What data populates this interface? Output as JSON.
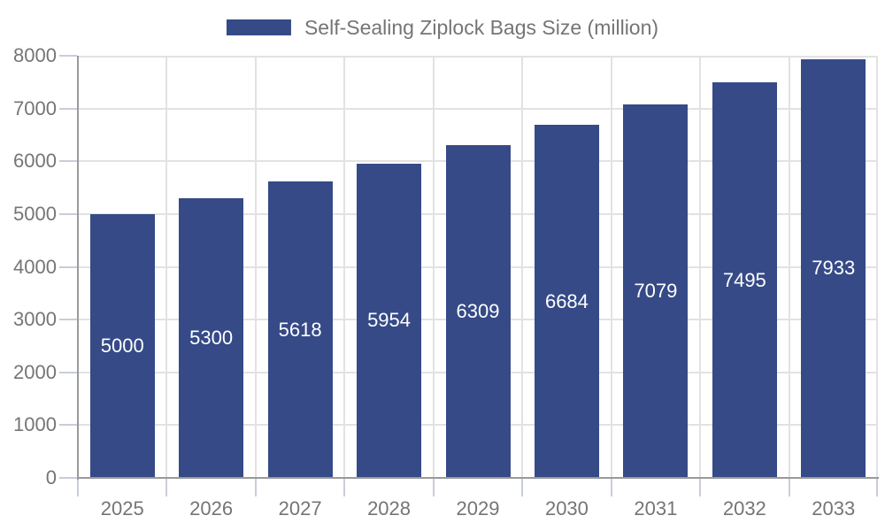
{
  "chart_data": {
    "type": "bar",
    "title": "Self-Sealing Ziplock Bags Size (million)",
    "categories": [
      "2025",
      "2026",
      "2027",
      "2028",
      "2029",
      "2030",
      "2031",
      "2032",
      "2033"
    ],
    "values": [
      5000,
      5300,
      5618,
      5954,
      6309,
      6684,
      7079,
      7495,
      7933
    ],
    "series": [
      {
        "name": "Self-Sealing Ziplock Bags Size (million)",
        "values": [
          5000,
          5300,
          5618,
          5954,
          6309,
          6684,
          7079,
          7495,
          7933
        ]
      }
    ],
    "xlabel": "",
    "ylabel": "",
    "ylim": [
      0,
      8000
    ],
    "yticks": [
      0,
      1000,
      2000,
      3000,
      4000,
      5000,
      6000,
      7000,
      8000
    ],
    "grid": true,
    "legend_position": "top",
    "bar_labels_inside": true
  },
  "legend": {
    "label": "Self-Sealing Ziplock Bags Size (million)"
  },
  "colors": {
    "bar": "#364a87",
    "bar_label": "#ffffff",
    "text": "#757575",
    "gridline": "#e2e2e2",
    "axis_line": "#9a9a9a",
    "tick_mark": "#c8cdd8",
    "background": "#ffffff"
  }
}
